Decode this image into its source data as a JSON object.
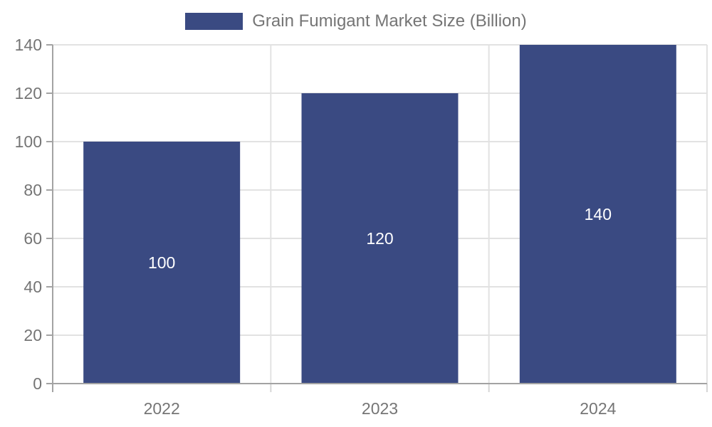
{
  "chart_data": {
    "type": "bar",
    "title": "Grain Fumigant Market Size (Billion)",
    "categories": [
      "2022",
      "2023",
      "2024"
    ],
    "series": [
      {
        "name": "Grain Fumigant Market Size (Billion)",
        "values": [
          100,
          120,
          140
        ]
      }
    ],
    "values": [
      100,
      120,
      140
    ],
    "bar_value_labels": [
      "100",
      "120",
      "140"
    ],
    "xlabel": "",
    "ylabel": "",
    "ylim": [
      0,
      140
    ],
    "yticks": [
      0,
      20,
      40,
      60,
      80,
      100,
      120,
      140
    ],
    "grid": true,
    "legend_position": "top-center",
    "colors": {
      "bar": "#3a4a82",
      "bar_label": "#ffffff",
      "grid": "#e2e2e2",
      "axis": "#a3a3a3",
      "x_tick": "#d6d6d6",
      "tick_label": "#757575",
      "legend_text": "#757575",
      "background": "#ffffff"
    }
  }
}
